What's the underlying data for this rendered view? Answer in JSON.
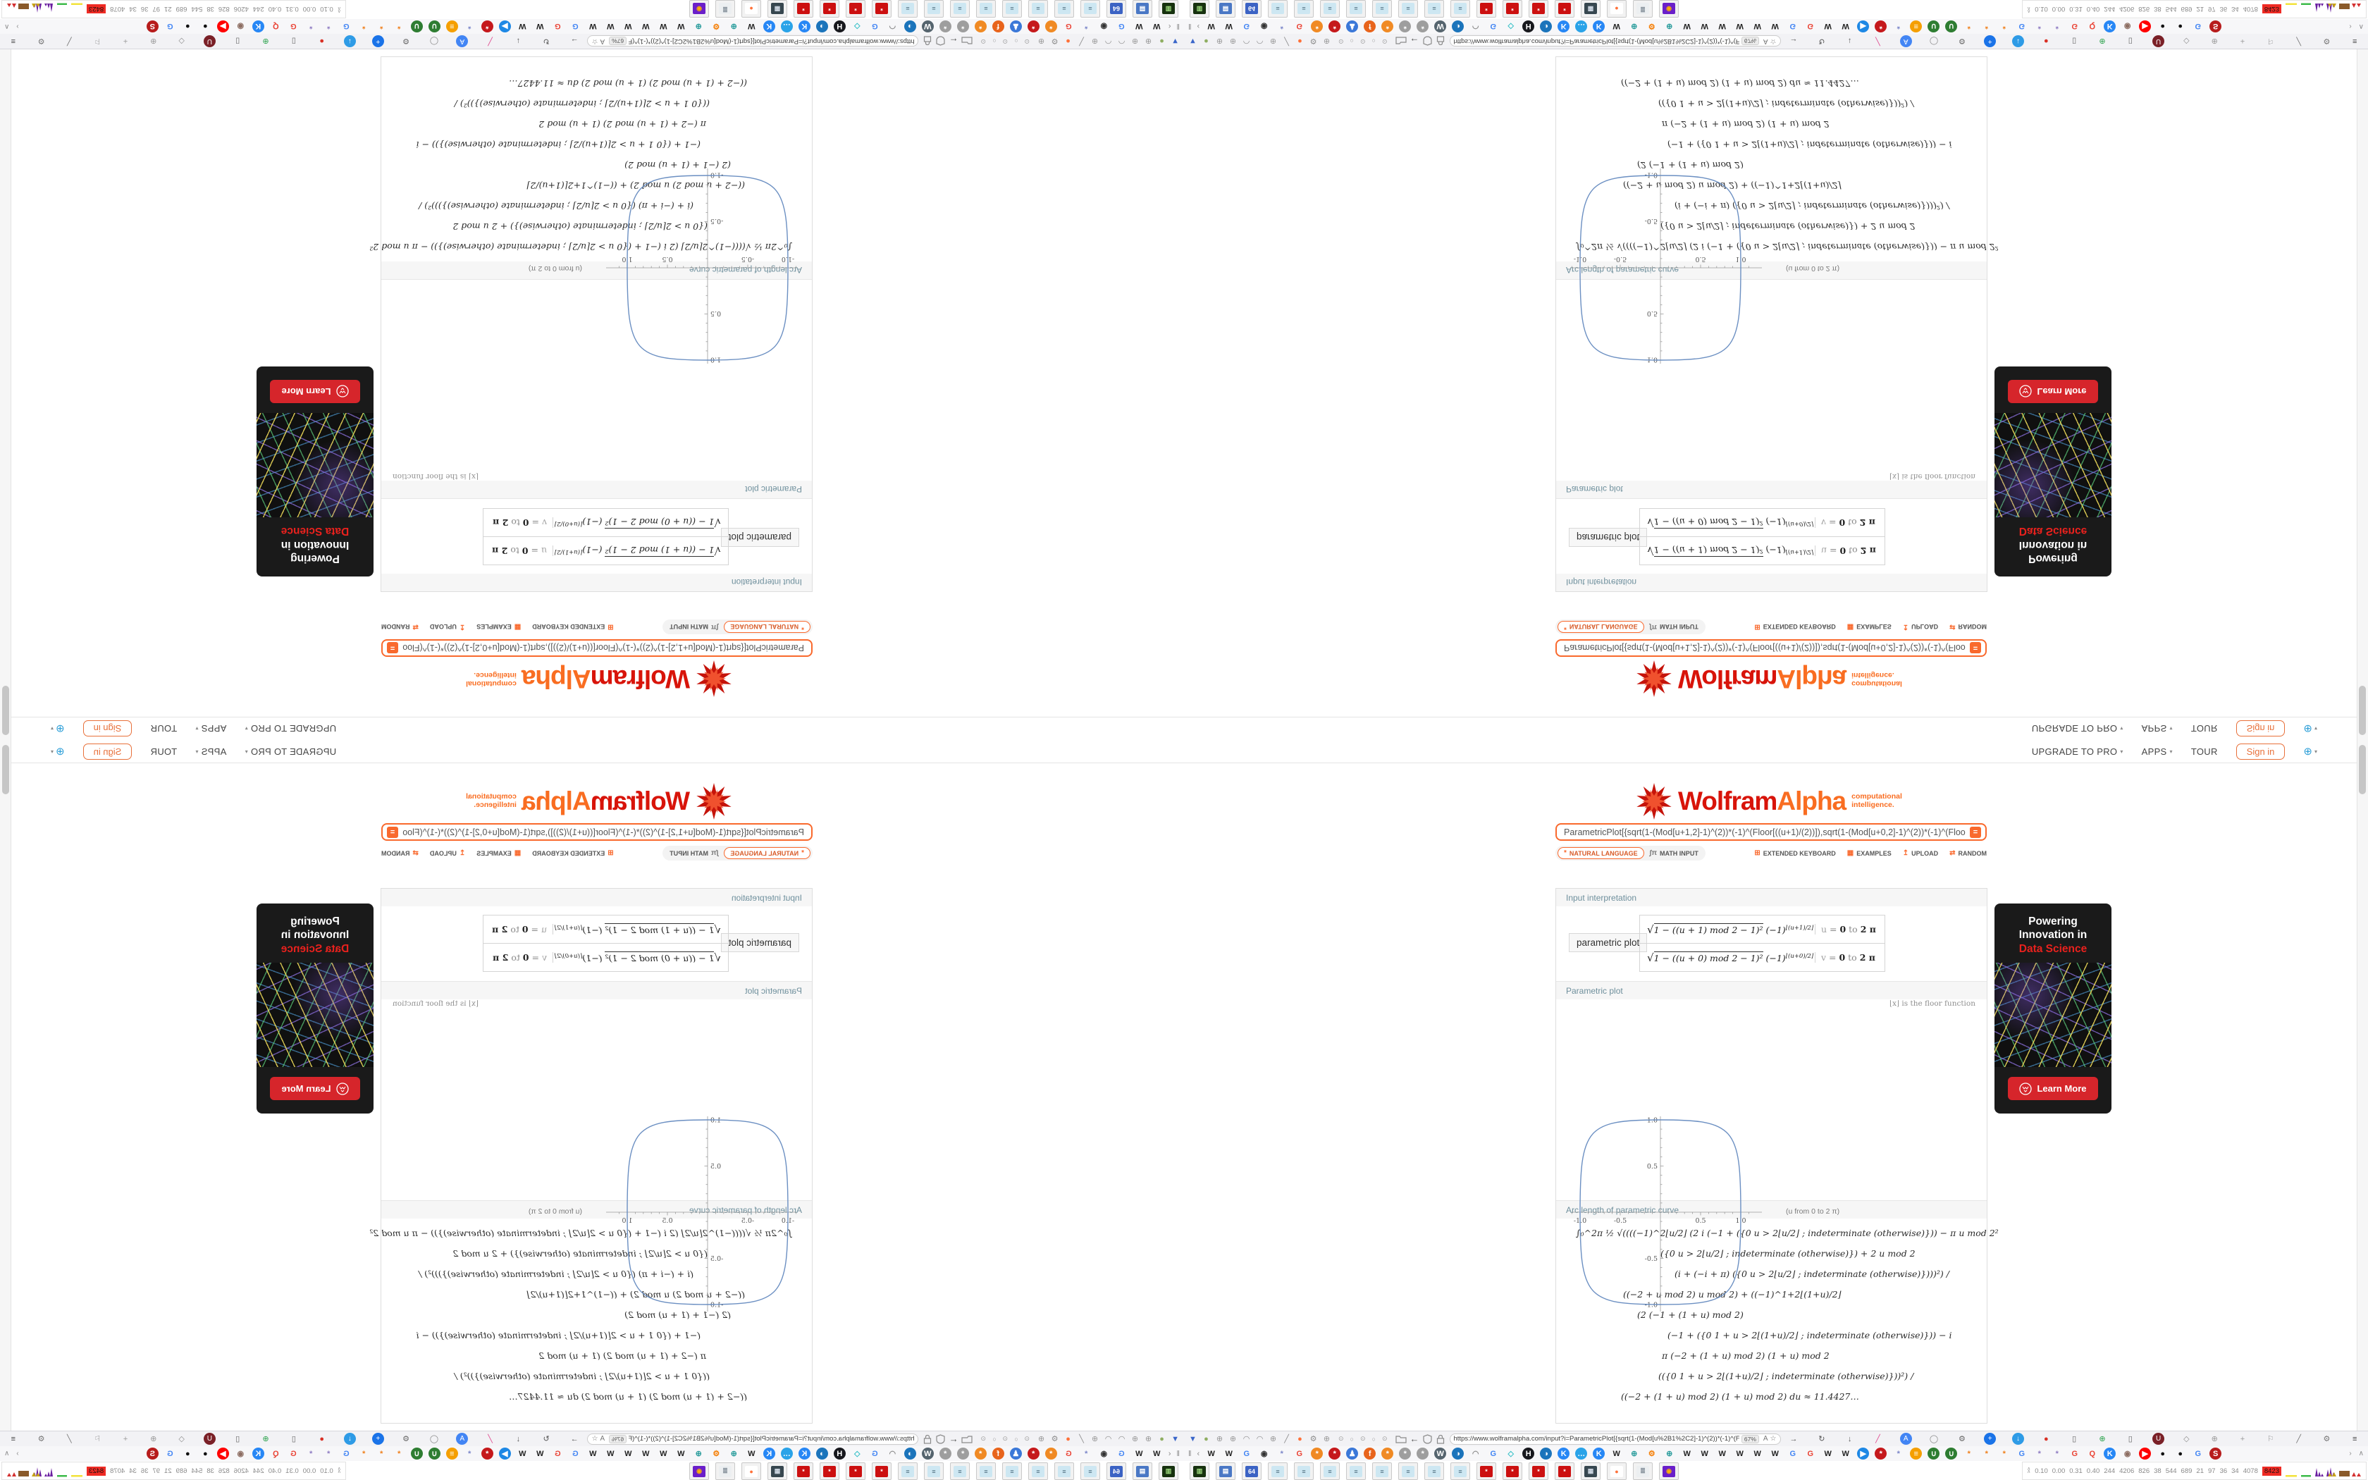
{
  "page": {
    "nav": {
      "items": [
        {
          "label": "UPGRADE TO PRO",
          "caret": true
        },
        {
          "label": "APPS",
          "caret": true
        },
        {
          "label": "TOUR",
          "caret": false
        }
      ],
      "sign_in": "Sign in",
      "globe_caret": "▾"
    },
    "logo": {
      "wolfram": "Wolfram",
      "alpha": "Alpha",
      "tagline_line1": "computational",
      "tagline_line2": "intelligence."
    },
    "query": {
      "value": "ParametricPlot[{sqrt(1-(Mod[u+1,2]-1)^(2))*(-1)^(Floor[((u+1)/(2))]),sqrt(1-(Mod[u+0,2]-1)^(2))*(-1)^(Floo",
      "equals_button": "="
    },
    "modes": {
      "natural_language": "NATURAL LANGUAGE",
      "math_input": "MATH INPUT",
      "math_icon": "∫π",
      "extended_keyboard": "EXTENDED KEYBOARD",
      "examples": "EXAMPLES",
      "upload": "UPLOAD",
      "random": "RANDOM"
    },
    "pods": {
      "interp": {
        "title": "Input interpretation",
        "label": "parametric plot",
        "rows": [
          {
            "radicand": "1 − ((u + 1) mod 2 − 1)²",
            "base": " (−1)",
            "exp": "⌊(u+1)/2⌋",
            "var": "u",
            "eq": " = ",
            "from": "0",
            "to_word": " to ",
            "to_val": "2 π"
          },
          {
            "radicand": "1 − ((u + 0) mod 2 − 1)²",
            "base": " (−1)",
            "exp": "⌊(u+0)/2⌋",
            "var": "v",
            "eq": " = ",
            "from": "0",
            "to_word": " to ",
            "to_val": "2 π"
          }
        ],
        "footnote": "⌊x⌋ is the floor function"
      },
      "plot": {
        "title": "Parametric plot",
        "xlabel": "(u from 0 to 2 π)"
      },
      "arc": {
        "title": "Arc length of parametric curve",
        "lines": [
          "∫₀^2π ½ √((((−1)^2⌊u/2⌋ (2 i (−1 + ({0  u > 2⌊u/2⌋ ;  indeterminate (otherwise)})) − π u mod 2²",
          "({0  u > 2⌊u/2⌋ ;  indeterminate (otherwise)}) + 2 u mod 2",
          "(i + (−i + π) ({0  u > 2⌊u/2⌋ ;  indeterminate (otherwise)})))²) /",
          "((−2 + u mod 2) u mod 2) + ((−1)^1+2⌊(1+u)/2⌋",
          "(2 (−1 + (1 + u) mod 2)",
          "(−1 + ({0  1 + u > 2⌊(1+u)/2⌋ ;  indeterminate (otherwise)})) − i",
          "π (−2 + (1 + u) mod 2) (1 + u) mod 2",
          "(({0  1 + u > 2⌊(1+u)/2⌋ ;  indeterminate (otherwise)}))²) /",
          "((−2 + (1 + u) mod 2) (1 + u) mod 2) du ≈ 11.4427…"
        ]
      }
    },
    "ad": {
      "line1": "Powering",
      "line2": "Innovation in",
      "line3": "Data Science",
      "button": "Learn More"
    }
  },
  "browser": {
    "url": "https://www.wolframalpha.com/input?i=ParametricPlot[{sqrt(1-(Mod[u%2B1%2C2]-1)^(2))*(-1)^(Floor[((u%2B1)%2F(2))])%2Csqrt(1-(Mod[u%2B0%2C2]-1)^(2))*(-1)^(Floor[((u%2B0",
    "zoom_level": "67%",
    "toolbar_left": [
      {
        "name": "map-pin-icon",
        "glyph": "▼",
        "color": "#3a66c9"
      },
      {
        "name": "status-dot-icon",
        "glyph": "●",
        "color": "#8fae62"
      },
      {
        "name": "globe-icon",
        "glyph": "⊕",
        "color": "#999999"
      },
      {
        "name": "globe-icon",
        "glyph": "⊕",
        "color": "#999999"
      },
      {
        "name": "gauge-icon",
        "glyph": "◠",
        "color": "#8d8d8d"
      },
      {
        "name": "gauge-icon",
        "glyph": "◠",
        "color": "#8d8d8d"
      },
      {
        "name": "globe-icon",
        "glyph": "⊕",
        "color": "#999999"
      },
      {
        "name": "wrench-icon",
        "glyph": "╱",
        "color": "#8d8d8d"
      },
      {
        "name": "firefox-icon",
        "glyph": "●",
        "color": "#ff7139"
      },
      {
        "name": "gear-icon",
        "glyph": "⚙",
        "color": "#8d8d8d"
      },
      {
        "name": "globe-icon",
        "glyph": "⊕",
        "color": "#999999"
      }
    ],
    "toolbar_dots": [
      "⊙",
      "○",
      "⊙",
      "○",
      "⊙"
    ],
    "toolbar_right": [
      {
        "name": "forward-icon",
        "glyph": "→",
        "color": "#555"
      },
      {
        "name": "reload-icon",
        "glyph": "↻",
        "color": "#555"
      },
      {
        "name": "download-icon",
        "glyph": "↓",
        "color": "#555"
      },
      {
        "name": "highlighter-icon",
        "glyph": "╱",
        "color": "#e14b8f"
      },
      {
        "name": "translate-ext-icon",
        "glyph": "A",
        "color": "#fff",
        "bg": "#4285f4"
      },
      {
        "name": "mouse-icon",
        "glyph": "◯",
        "color": "#888"
      },
      {
        "name": "gear-icon",
        "glyph": "⚙",
        "color": "#666"
      },
      {
        "name": "add-extension-icon",
        "glyph": "+",
        "color": "#fff",
        "bg": "#1a73e8"
      },
      {
        "name": "vpn-shield-icon",
        "glyph": "↓",
        "color": "#fff",
        "bg": "#2e9be6"
      },
      {
        "name": "record-icon",
        "glyph": "●",
        "color": "#d93025"
      },
      {
        "name": "trash-icon",
        "glyph": "▯",
        "color": "#666"
      },
      {
        "name": "earth-icon",
        "glyph": "⊕",
        "color": "#2ba24c"
      },
      {
        "name": "bin-icon",
        "glyph": "▯",
        "color": "#666"
      },
      {
        "name": "uo-shield-icon",
        "glyph": "U",
        "color": "#fff",
        "bg": "#7a2027"
      },
      {
        "name": "shield-icon",
        "glyph": "◇",
        "color": "#8d8d8d"
      },
      {
        "name": "globe-icon",
        "glyph": "⊕",
        "color": "#9a9a9a"
      },
      {
        "name": "puzzle-icon",
        "glyph": "+",
        "color": "#9a9a9a"
      },
      {
        "name": "hand-icon",
        "glyph": "⚐",
        "color": "#9a9a9a"
      },
      {
        "name": "wrench-icon",
        "glyph": "╱",
        "color": "#777"
      },
      {
        "name": "gear-icon",
        "glyph": "⚙",
        "color": "#777"
      },
      {
        "name": "menu-icon",
        "glyph": "≡",
        "color": "#444"
      }
    ],
    "bookmarks_controls": {
      "pause": "‖",
      "back": "‹",
      "overflow": "›",
      "collapse": "∧"
    },
    "bookmarks": [
      {
        "name": "wikipedia-bookmark",
        "glyph": "W",
        "color": "#222",
        "bg": ""
      },
      {
        "name": "wikipedia-bookmark",
        "glyph": "W",
        "color": "#222",
        "bg": ""
      },
      {
        "name": "google-bookmark",
        "glyph": "G",
        "color": "#4285f4",
        "bg": ""
      },
      {
        "name": "camera-bookmark",
        "glyph": "◉",
        "color": "#333",
        "bg": ""
      },
      {
        "name": "wreath-bookmark",
        "glyph": "*",
        "color": "#7b86c9",
        "bg": ""
      },
      {
        "name": "google-bookmark",
        "glyph": "G",
        "color": "#ea4335",
        "bg": ""
      },
      {
        "name": "spikey-bookmark",
        "glyph": "*",
        "color": "#fff",
        "bg": "#f08a24"
      },
      {
        "name": "spikey-bookmark",
        "glyph": "*",
        "color": "#fff",
        "bg": "#c5191c"
      },
      {
        "name": "people-bookmark",
        "glyph": "♟",
        "color": "#fff",
        "bg": "#3b78d8"
      },
      {
        "name": "fx-bookmark",
        "glyph": "f",
        "color": "#fff",
        "bg": "#e8641c"
      },
      {
        "name": "spikey-bookmark",
        "glyph": "*",
        "color": "#fff",
        "bg": "#f08a24"
      },
      {
        "name": "spikey-bookmark",
        "glyph": "*",
        "color": "#fff",
        "bg": "#9e9e9e"
      },
      {
        "name": "spikey-bookmark",
        "glyph": "*",
        "color": "#fff",
        "bg": "#9e9e9e"
      },
      {
        "name": "wordpress-bookmark",
        "glyph": "W",
        "color": "#fff",
        "bg": "#55646e"
      },
      {
        "name": "pie-bookmark",
        "glyph": "◑",
        "color": "#fff",
        "bg": "#1b74bb"
      },
      {
        "name": "gauge-bookmark",
        "glyph": "◠",
        "color": "#8d8d8d",
        "bg": ""
      },
      {
        "name": "google-bookmark",
        "glyph": "G",
        "color": "#4285f4",
        "bg": ""
      },
      {
        "name": "book-bookmark",
        "glyph": "◇",
        "color": "#39c1c8",
        "bg": ""
      },
      {
        "name": "hex-bookmark",
        "glyph": "H",
        "color": "#fff",
        "bg": "#17181d"
      },
      {
        "name": "pie-bookmark",
        "glyph": "◑",
        "color": "#fff",
        "bg": "#1b74bb"
      },
      {
        "name": "vk-bookmark",
        "glyph": "K",
        "color": "#fff",
        "bg": "#2787f5"
      },
      {
        "name": "chat-bookmark",
        "glyph": "…",
        "color": "#fff",
        "bg": "#2aa3e8"
      },
      {
        "name": "vk-bookmark",
        "glyph": "K",
        "color": "#fff",
        "bg": "#2787f5"
      },
      {
        "name": "wikipedia-bookmark",
        "glyph": "W",
        "color": "#222",
        "bg": ""
      },
      {
        "name": "globe-bookmark",
        "glyph": "⊕",
        "color": "#2e9e9e",
        "bg": ""
      },
      {
        "name": "gear-bookmark",
        "glyph": "⚙",
        "color": "#f57c00",
        "bg": ""
      },
      {
        "name": "globe-bookmark",
        "glyph": "⊕",
        "color": "#2e9e9e",
        "bg": ""
      },
      {
        "name": "wikipedia-bookmark",
        "glyph": "W",
        "color": "#222",
        "bg": ""
      },
      {
        "name": "wikipedia-bookmark",
        "glyph": "W",
        "color": "#222",
        "bg": ""
      },
      {
        "name": "wikipedia-bookmark",
        "glyph": "W",
        "color": "#222",
        "bg": ""
      },
      {
        "name": "wikipedia-bookmark",
        "glyph": "W",
        "color": "#222",
        "bg": ""
      },
      {
        "name": "wikipedia-bookmark",
        "glyph": "W",
        "color": "#222",
        "bg": ""
      },
      {
        "name": "wikipedia-bookmark",
        "glyph": "W",
        "color": "#222",
        "bg": ""
      },
      {
        "name": "google-bookmark",
        "glyph": "G",
        "color": "#4285f4",
        "bg": ""
      },
      {
        "name": "google-bookmark",
        "glyph": "G",
        "color": "#ea4335",
        "bg": ""
      },
      {
        "name": "wikipedia-bookmark",
        "glyph": "W",
        "color": "#222",
        "bg": ""
      },
      {
        "name": "wikipedia-bookmark",
        "glyph": "W",
        "color": "#222",
        "bg": ""
      },
      {
        "name": "play-bookmark",
        "glyph": "▶",
        "color": "#fff",
        "bg": "#1e88e5"
      },
      {
        "name": "spikey-bookmark",
        "glyph": "*",
        "color": "#fff",
        "bg": "#c5191c"
      },
      {
        "name": "wreath-bookmark",
        "glyph": "*",
        "color": "#7b86c9",
        "bg": ""
      },
      {
        "name": "coin-bookmark",
        "glyph": "≡",
        "color": "#fff",
        "bg": "#f59f00"
      },
      {
        "name": "mm-bookmark",
        "glyph": "∪",
        "color": "#fff",
        "bg": "#2e7d32"
      },
      {
        "name": "mm-bookmark",
        "glyph": "∪",
        "color": "#fff",
        "bg": "#2e7d32"
      },
      {
        "name": "gear-bookmark",
        "glyph": "*",
        "color": "#ef7f1a",
        "bg": ""
      },
      {
        "name": "gear-bookmark",
        "glyph": "*",
        "color": "#ef7f1a",
        "bg": ""
      },
      {
        "name": "gear-bookmark",
        "glyph": "*",
        "color": "#ef7f1a",
        "bg": ""
      },
      {
        "name": "google-bookmark",
        "glyph": "G",
        "color": "#4285f4",
        "bg": ""
      },
      {
        "name": "wreath-bookmark",
        "glyph": "*",
        "color": "#8e7cc3",
        "bg": ""
      },
      {
        "name": "wreath-bookmark",
        "glyph": "*",
        "color": "#8e7cc3",
        "bg": ""
      },
      {
        "name": "google-bookmark",
        "glyph": "G",
        "color": "#ea4335",
        "bg": ""
      },
      {
        "name": "q-bookmark",
        "glyph": "Q",
        "color": "#ea4335",
        "bg": ""
      },
      {
        "name": "vk-bookmark",
        "glyph": "K",
        "color": "#fff",
        "bg": "#2787f5"
      },
      {
        "name": "face-bookmark",
        "glyph": "◉",
        "color": "#8d6e63",
        "bg": ""
      },
      {
        "name": "youtube-bookmark",
        "glyph": "▶",
        "color": "#fff",
        "bg": "#ff0000"
      },
      {
        "name": "dark-bookmark",
        "glyph": "●",
        "color": "#111",
        "bg": ""
      },
      {
        "name": "dark-bookmark",
        "glyph": "●",
        "color": "#111",
        "bg": ""
      },
      {
        "name": "google-bookmark",
        "glyph": "G",
        "color": "#4285f4",
        "bg": ""
      },
      {
        "name": "sr-bookmark",
        "glyph": "S",
        "color": "#fff",
        "bg": "#b71c1c"
      }
    ]
  },
  "desktop": {
    "shortcuts": [
      {
        "name": "terminal-shortcut",
        "glyph": "▥",
        "fg": "#9fdc7f",
        "bg": "#17320f"
      },
      {
        "name": "computer-shortcut",
        "glyph": "▤",
        "fg": "#fff",
        "bg": "#4a78c5"
      },
      {
        "name": "floppy64-shortcut",
        "glyph": "64",
        "fg": "#fff",
        "bg": "#3b63c4"
      },
      {
        "name": "notepad-shortcut",
        "glyph": "≡",
        "fg": "#4a6b7c",
        "bg": "#cde7f2"
      },
      {
        "name": "notepad-shortcut",
        "glyph": "≡",
        "fg": "#4a6b7c",
        "bg": "#cde7f2"
      },
      {
        "name": "notepad-shortcut",
        "glyph": "≡",
        "fg": "#4a6b7c",
        "bg": "#cde7f2"
      },
      {
        "name": "notepad-shortcut",
        "glyph": "≡",
        "fg": "#4a6b7c",
        "bg": "#cde7f2"
      },
      {
        "name": "notepad-shortcut",
        "glyph": "≡",
        "fg": "#4a6b7c",
        "bg": "#cde7f2"
      },
      {
        "name": "notepad-shortcut",
        "glyph": "≡",
        "fg": "#4a6b7c",
        "bg": "#cde7f2"
      },
      {
        "name": "notepad-shortcut",
        "glyph": "≡",
        "fg": "#4a6b7c",
        "bg": "#cde7f2"
      },
      {
        "name": "notepad-shortcut",
        "glyph": "≡",
        "fg": "#4a6b7c",
        "bg": "#cde7f2"
      },
      {
        "name": "wolfram-spikey-shortcut",
        "glyph": "*",
        "fg": "#fff",
        "bg": "#cc1010"
      },
      {
        "name": "wolfram-spikey-shortcut",
        "glyph": "*",
        "fg": "#fff",
        "bg": "#cc1010"
      },
      {
        "name": "wolfram-spikey-shortcut",
        "glyph": "*",
        "fg": "#fff",
        "bg": "#cc1010"
      },
      {
        "name": "wolfram-spikey-shortcut",
        "glyph": "*",
        "fg": "#fff",
        "bg": "#cc1010"
      },
      {
        "name": "monitor-camera-shortcut",
        "glyph": "▦",
        "fg": "#cfd8e3",
        "bg": "#37474f"
      },
      {
        "name": "firefox-shortcut",
        "glyph": "●",
        "fg": "#ff7139",
        "bg": "#fff"
      },
      {
        "name": "scroll-doc-shortcut",
        "glyph": "≣",
        "fg": "#7e8a94",
        "bg": "#eceff1"
      },
      {
        "name": "owl-shortcut",
        "glyph": "◉",
        "fg": "#ffb300",
        "bg": "#6a1fc9"
      }
    ],
    "stats": {
      "values": [
        "0.10",
        "0.00",
        "0.31",
        "0.40",
        "244",
        "4206",
        "826",
        "38",
        "544",
        "689",
        "21",
        "97",
        "36",
        "34",
        "4078"
      ],
      "highlight": "8423"
    }
  },
  "colors": {
    "accent_orange": "#f9692d",
    "logo_red": "#d8140a",
    "logo_orange": "#f96d21",
    "ad_red": "#d6252b",
    "plot_curve": "#6b8fc2",
    "pod_title": "#6e8f9c"
  },
  "chart_data": {
    "type": "line",
    "title": "Parametric plot",
    "xlabel": "(u from 0 to 2 π)",
    "xlim": [
      -1.3,
      1.3
    ],
    "ylim": [
      -1.15,
      1.15
    ],
    "xticks": [
      -1.0,
      -0.5,
      0.5,
      1.0
    ],
    "yticks": [
      -1.0,
      -0.5,
      0.5,
      1.0
    ],
    "xtick_labels": [
      "-1.0",
      "-0.5",
      "0.5",
      "1.0"
    ],
    "ytick_labels": [
      "1.0",
      "0.5",
      "-0.5",
      "-1.0"
    ],
    "x_of_u": "sqrt(1-((u+1) mod 2 - 1)^2)*(-1)^floor((u+1)/2)",
    "y_of_u": "sqrt(1-((u+0) mod 2 - 1)^2)*(-1)^floor((u+0)/2)",
    "u_range": [
      0,
      "2π"
    ],
    "description": "Closed squircle (rounded-square) curve passing through (1,0), (0,1), (-1,0), (0,-1)",
    "arc_length": 11.4427,
    "grid": false,
    "legend": false
  }
}
